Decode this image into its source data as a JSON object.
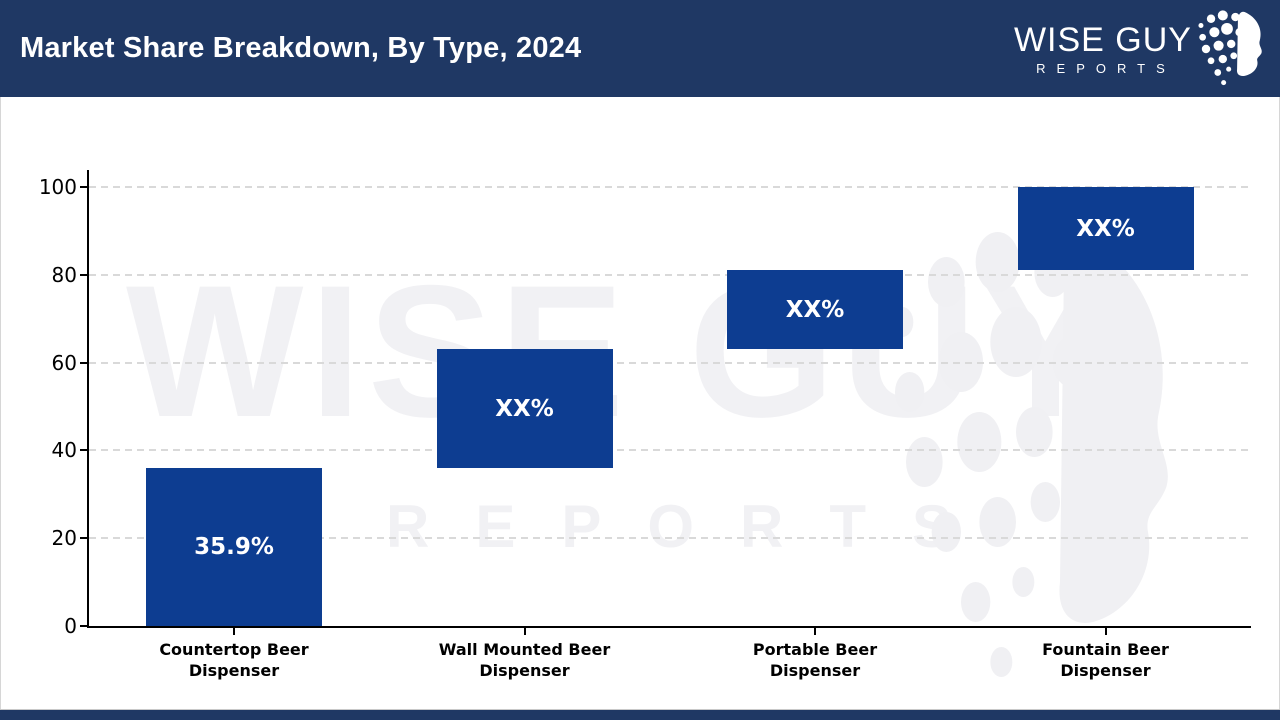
{
  "header": {
    "title": "Market Share Breakdown, By Type, 2024",
    "background_color": "#1f3864",
    "logo": {
      "line1": "WISE GUY",
      "line2": "REPORTS"
    }
  },
  "watermark": {
    "line1": "WISE GUY",
    "line2": "REPORTS"
  },
  "chart_data": {
    "type": "bar",
    "subtype": "waterfall-floating-bars",
    "title": "Market Share Breakdown, By Type, 2024",
    "categories": [
      "Countertop Beer Dispenser",
      "Wall Mounted Beer Dispenser",
      "Portable Beer Dispenser",
      "Fountain Beer Dispenser"
    ],
    "segments": [
      {
        "start": 0,
        "end": 35.9,
        "label": "35.9%"
      },
      {
        "start": 35.9,
        "end": 63,
        "label": "XX%"
      },
      {
        "start": 63,
        "end": 81,
        "label": "XX%"
      },
      {
        "start": 81,
        "end": 100,
        "label": "XX%"
      }
    ],
    "y_ticks": [
      0,
      20,
      40,
      60,
      80,
      100
    ],
    "ylim": [
      0,
      104
    ],
    "xlabel": "",
    "ylabel": "",
    "legend": "none",
    "grid": "horizontal-dashed",
    "bar_color": "#0d3d91",
    "bar_label_color": "#ffffff",
    "axis_color": "#000000",
    "gridline_color": "#d9d9d9"
  }
}
